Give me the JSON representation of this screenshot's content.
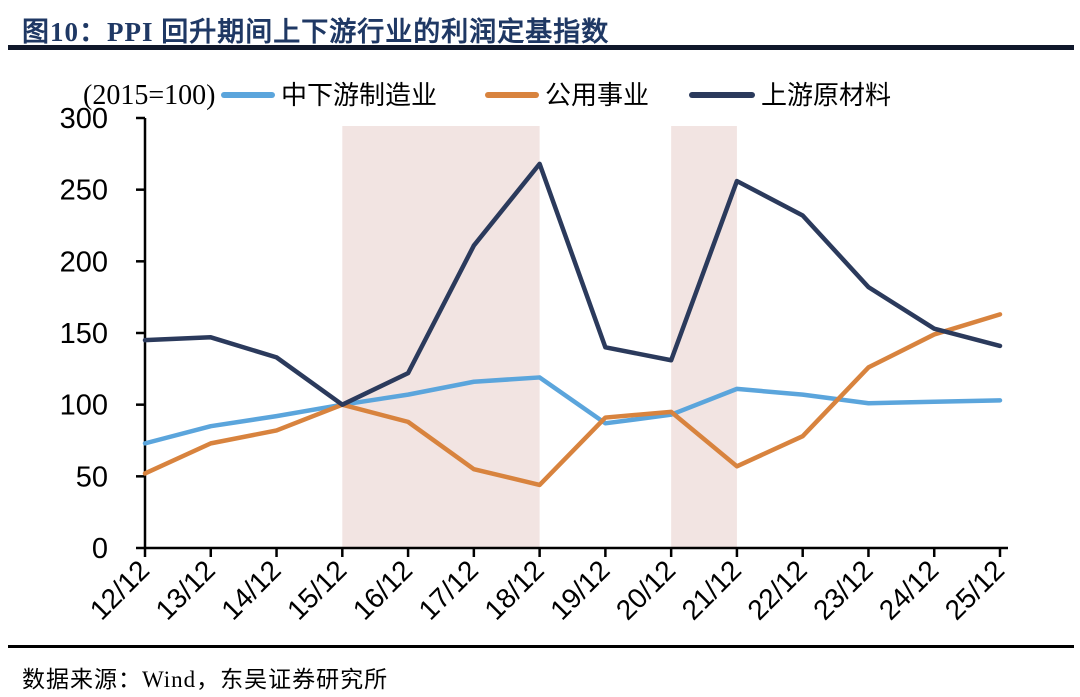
{
  "header": {
    "title": "图10：PPI 回升期间上下游行业的利润定基指数"
  },
  "footer": {
    "source": "数据来源：Wind，东吴证券研究所"
  },
  "chart_data": {
    "type": "line",
    "title": "PPI 回升期间上下游行业的利润定基指数",
    "unit_label": "(2015=100)",
    "categories": [
      "12/12",
      "13/12",
      "14/12",
      "15/12",
      "16/12",
      "17/12",
      "18/12",
      "19/12",
      "20/12",
      "21/12",
      "22/12",
      "23/12",
      "24/12",
      "25/12"
    ],
    "series": [
      {
        "name": "中下游制造业",
        "color": "#5BA5DC",
        "values": [
          73,
          85,
          92,
          100,
          107,
          116,
          119,
          87,
          93,
          111,
          107,
          101,
          102,
          103
        ]
      },
      {
        "name": "公用事业",
        "color": "#D8833E",
        "values": [
          52,
          73,
          82,
          100,
          88,
          55,
          44,
          91,
          95,
          57,
          78,
          126,
          149,
          163
        ]
      },
      {
        "name": "上游原材料",
        "color": "#2B3A5C",
        "values": [
          145,
          147,
          133,
          100,
          122,
          211,
          268,
          140,
          131,
          256,
          232,
          182,
          153,
          141
        ]
      }
    ],
    "xlabel": "",
    "ylabel": "",
    "ylim": [
      0,
      300
    ],
    "yticks": [
      0,
      50,
      100,
      150,
      200,
      250,
      300
    ],
    "grid": false,
    "legend_position": "top",
    "highlight_bands": [
      {
        "from": "15/12",
        "to": "18/12"
      },
      {
        "from": "20/12",
        "to": "21/12"
      }
    ],
    "band_color": "#F2E4E2",
    "axis_color": "#000000"
  }
}
